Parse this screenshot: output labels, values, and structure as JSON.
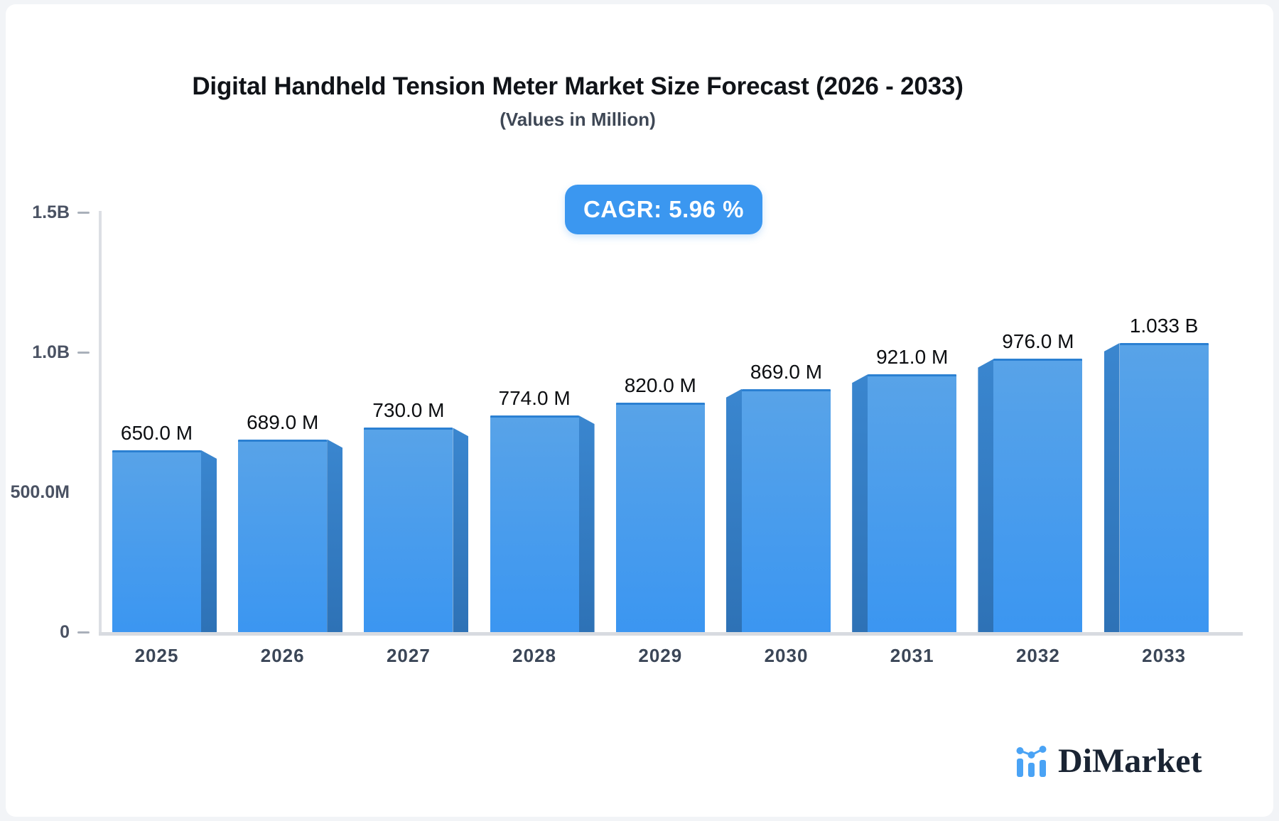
{
  "header": {
    "title": "Digital Handheld Tension Meter Market Size Forecast (2026 - 2033)",
    "subtitle": "(Values in Million)"
  },
  "badge": {
    "label": "CAGR: 5.96 %",
    "bg_color": "#3b97f0",
    "text_color": "#ffffff"
  },
  "chart_data": {
    "type": "bar",
    "title": "Digital Handheld Tension Meter Market Size Forecast (2026 - 2033)",
    "subtitle": "(Values in Million)",
    "categories": [
      "2025",
      "2026",
      "2027",
      "2028",
      "2029",
      "2030",
      "2031",
      "2032",
      "2033"
    ],
    "values_million": [
      650,
      689,
      730,
      774,
      820,
      869,
      921,
      976,
      1033
    ],
    "bar_labels": [
      "650.0 M",
      "689.0 M",
      "730.0 M",
      "774.0 M",
      "820.0 M",
      "869.0 M",
      "921.0 M",
      "976.0 M",
      "1.033 B"
    ],
    "ylabel": "",
    "xlabel": "",
    "ylim_million": [
      0,
      1500
    ],
    "yticks": [
      {
        "label": "1.5B",
        "value_million": 1500,
        "dash": true
      },
      {
        "label": "1.0B",
        "value_million": 1000,
        "dash": true
      },
      {
        "label": "500.0M",
        "value_million": 500,
        "dash": false
      },
      {
        "label": "0",
        "value_million": 0,
        "dash": true
      }
    ],
    "grid": false,
    "legend": "none",
    "colors": {
      "face_top": "#58a3e8",
      "face_bottom": "#3b96f1",
      "side_top": "#3a86cf",
      "side_bottom": "#2e72b6",
      "top_edge": "#2b80d2",
      "label": "#0c0e11"
    }
  },
  "logo": {
    "text": "DiMarket",
    "icon": "mini-bar-chart-logo-icon",
    "icon_color": "#4aa3f5",
    "text_color": "#1a2433"
  }
}
